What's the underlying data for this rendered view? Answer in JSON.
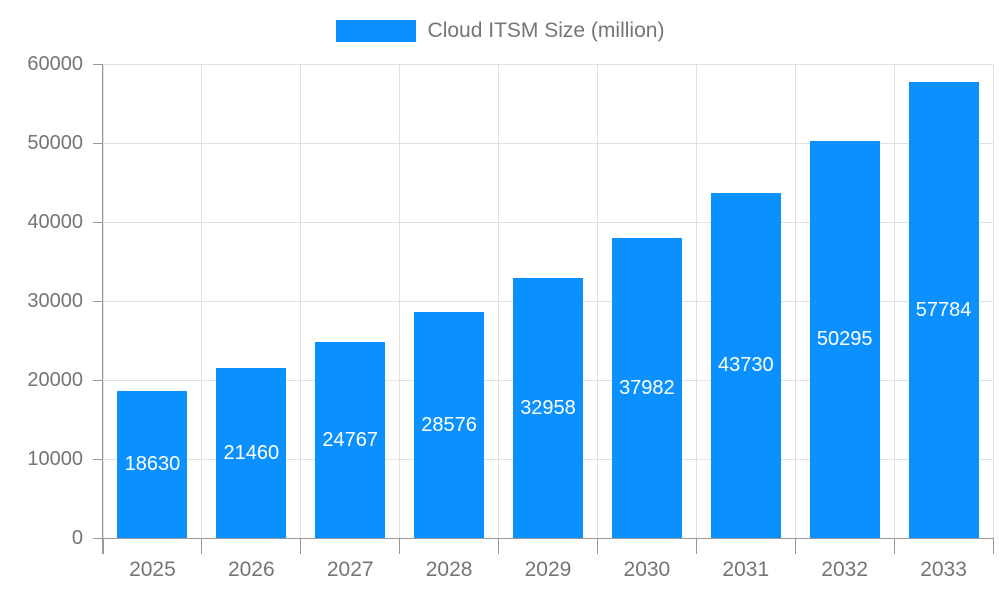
{
  "legend": {
    "label": "Cloud ITSM Size (million)",
    "swatch_color": "#0a91ff"
  },
  "chart_data": {
    "type": "bar",
    "title": "Cloud ITSM Size (million)",
    "categories": [
      "2025",
      "2026",
      "2027",
      "2028",
      "2029",
      "2030",
      "2031",
      "2032",
      "2033"
    ],
    "values": [
      18630,
      21460,
      24767,
      28576,
      32958,
      37982,
      43730,
      50295,
      57784
    ],
    "xlabel": "",
    "ylabel": "",
    "ylim": [
      0,
      60000
    ],
    "ytick_step": 10000,
    "ytick_labels": [
      "0",
      "10000",
      "20000",
      "30000",
      "40000",
      "50000",
      "60000"
    ],
    "grid": true,
    "legend_position": "top",
    "bar_color": "#0a91ff",
    "value_label_color": "#ffffff",
    "value_label_position": "inside-center",
    "axis_text_color": "#757575",
    "grid_color": "#e0e0e0",
    "axis_line_color": "#999999"
  }
}
